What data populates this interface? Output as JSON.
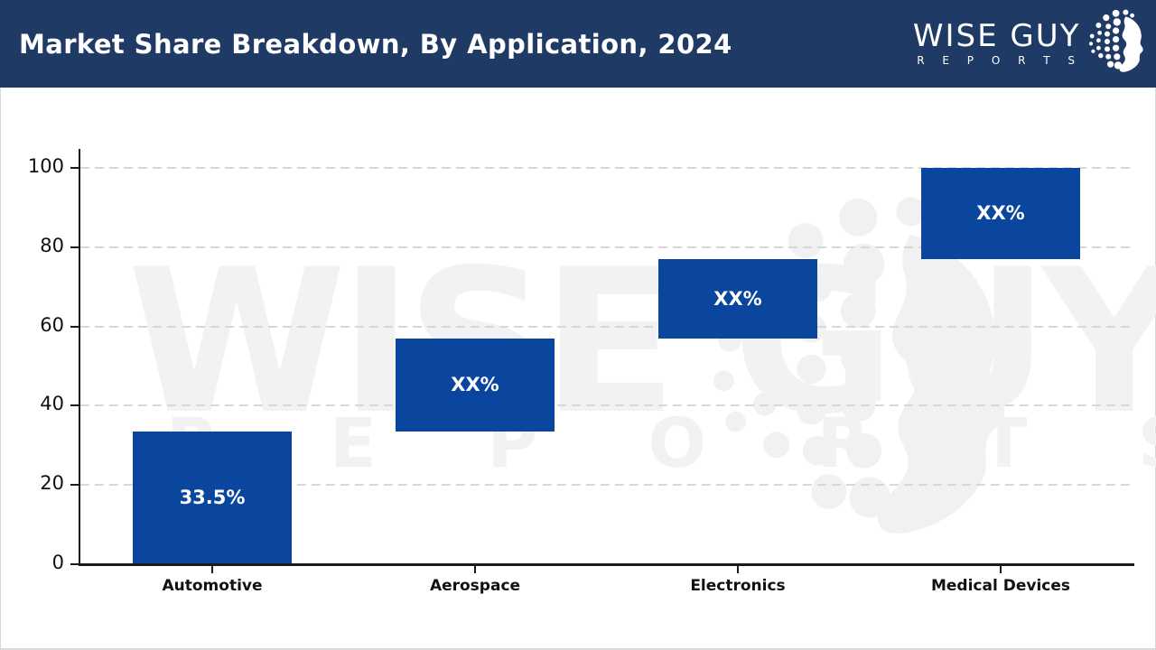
{
  "header": {
    "title": "Market Share Breakdown, By Application, 2024",
    "background_color": "#203a66",
    "logo": {
      "line1": "WISE GUY",
      "line2": "R E P O R T S"
    }
  },
  "watermark": {
    "line1": "WISE GUY",
    "line2": "R E P O R T S"
  },
  "chart_data": {
    "type": "bar",
    "subtype": "waterfall-floating-bars",
    "title": "Market Share Breakdown, By Application, 2024",
    "categories": [
      "Automotive",
      "Aerospace",
      "Electronics",
      "Medical Devices"
    ],
    "segments": [
      {
        "category": "Automotive",
        "start": 0,
        "end": 33.5,
        "label": "33.5%"
      },
      {
        "category": "Aerospace",
        "start": 33.5,
        "end": 57,
        "label": "XX%"
      },
      {
        "category": "Electronics",
        "start": 57,
        "end": 77,
        "label": "XX%"
      },
      {
        "category": "Medical Devices",
        "start": 77,
        "end": 100,
        "label": "XX%"
      }
    ],
    "xlabel": "",
    "ylabel": "",
    "ylim": [
      0,
      100
    ],
    "yticks": [
      0,
      20,
      40,
      60,
      80,
      100
    ],
    "grid": "dashed-horizontal",
    "legend": "none",
    "bar_color": "#0b469e",
    "bar_label_color": "#ffffff",
    "axis_color": "#1a1a1a",
    "gridline_color": "#d8d8d8"
  }
}
